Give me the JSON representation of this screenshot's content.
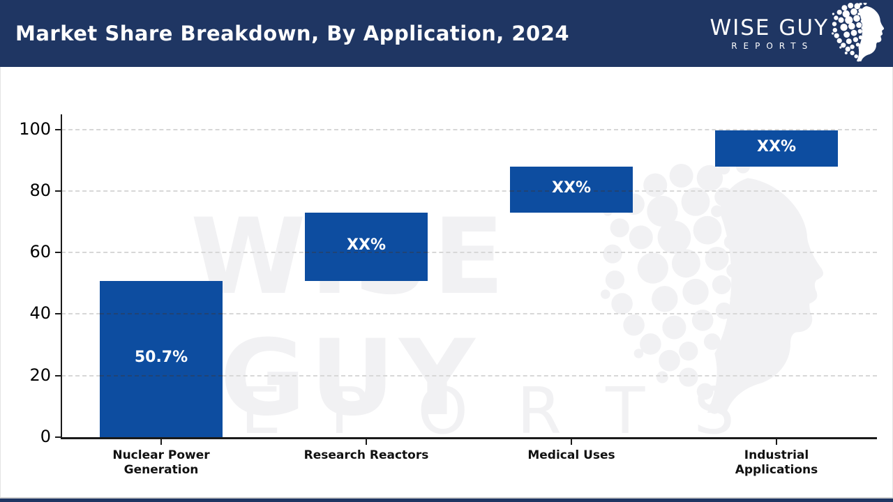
{
  "header": {
    "title": "Market Share Breakdown, By Application, 2024",
    "logo": {
      "wordmark": "WISE GUY",
      "subtext": "REPORTS"
    }
  },
  "watermark": {
    "line1": "WISE GUY",
    "line2": "REPORTS"
  },
  "colors": {
    "header_bg": "#1f3663",
    "footer_bg": "#1f3663",
    "bar": "#0d4da0",
    "bar_label": "#ffffff",
    "axis": "#1a1a1a",
    "gridline": "#d7d7d7",
    "watermark": "#f1f1f3"
  },
  "chart_data": {
    "type": "bar",
    "subtype": "waterfall",
    "title": "Market Share Breakdown, By Application, 2024",
    "categories": [
      "Nuclear Power Generation",
      "Research Reactors",
      "Medical Uses",
      "Industrial Applications"
    ],
    "category_label_lines": [
      [
        "Nuclear Power",
        "Generation"
      ],
      [
        "Research Reactors"
      ],
      [
        "Medical Uses"
      ],
      [
        "Industrial",
        "Applications"
      ]
    ],
    "segments": [
      {
        "category": "Nuclear Power Generation",
        "start": 0,
        "end": 50.7,
        "label": "50.7%"
      },
      {
        "category": "Research Reactors",
        "start": 50.7,
        "end": 72.9,
        "label": "XX%"
      },
      {
        "category": "Medical Uses",
        "start": 72.9,
        "end": 87.9,
        "label": "XX%"
      },
      {
        "category": "Industrial Applications",
        "start": 87.9,
        "end": 99.7,
        "label": "XX%"
      }
    ],
    "xlabel": "",
    "ylabel": "",
    "ylim": [
      0,
      105
    ],
    "yticks": [
      0,
      20,
      40,
      60,
      80,
      100
    ],
    "grid": "horizontal-dashed",
    "legend": "none"
  }
}
